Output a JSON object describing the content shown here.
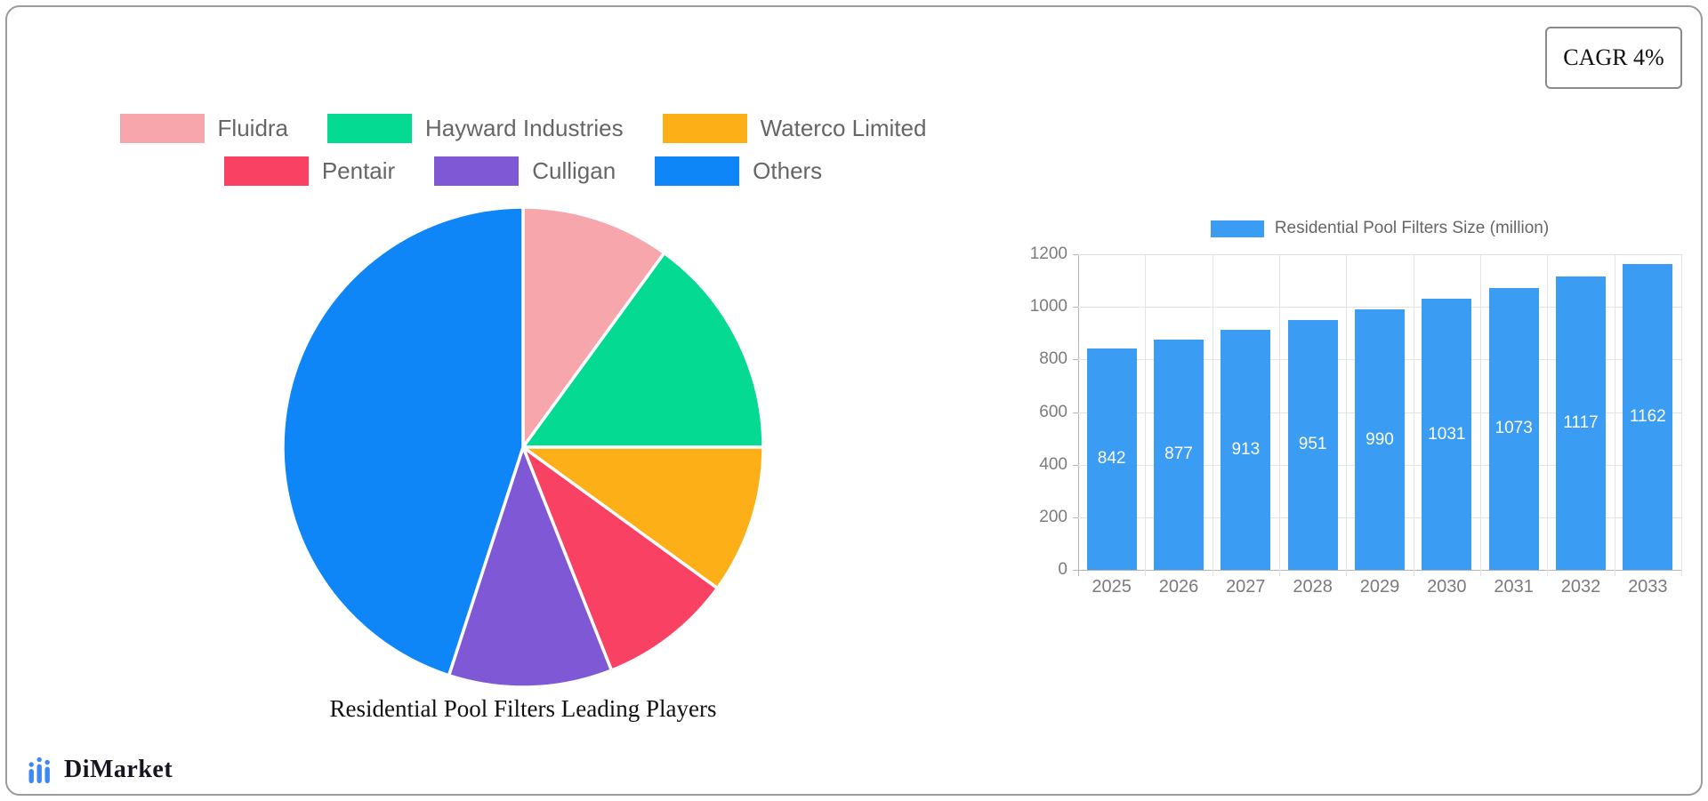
{
  "cagr_badge": "CAGR 4%",
  "logo": {
    "text": "DiMarket",
    "icon_color": "#3f87f5"
  },
  "colors": {
    "bar_blue": "#3b9cf3",
    "grid": "#e3e3e3",
    "axis": "#b5b5b5",
    "legend_text": "#666666",
    "tick_text": "#7b7b7b"
  },
  "chart_data": [
    {
      "type": "pie",
      "title": "Residential Pool Filters Leading Players",
      "labels": [
        "Fluidra",
        "Hayward Industries",
        "Waterco Limited",
        "Pentair",
        "Culligan",
        "Others"
      ],
      "values": [
        10,
        15,
        10,
        9,
        11,
        45
      ],
      "unit": "percent-share (estimated from slice angles)",
      "colors": [
        "#f7a6ab",
        "#05da92",
        "#fcaf17",
        "#f94164",
        "#7f58d6",
        "#0e86f8"
      ],
      "legend_position": "top",
      "legend_rows": [
        [
          0,
          1,
          2
        ],
        [
          3,
          4,
          5
        ]
      ]
    },
    {
      "type": "bar",
      "legend": "Residential Pool Filters Size (million)",
      "categories": [
        "2025",
        "2026",
        "2027",
        "2028",
        "2029",
        "2030",
        "2031",
        "2032",
        "2033"
      ],
      "values": [
        842,
        877,
        913,
        951,
        990,
        1031,
        1073,
        1117,
        1162
      ],
      "title": "",
      "xlabel": "",
      "ylabel": "",
      "ylim": [
        0,
        1200
      ],
      "ytick_step": 200,
      "grid": true,
      "bar_color": "#3b9cf3",
      "value_label_color": "#ffffff",
      "legend_position": "top"
    }
  ]
}
